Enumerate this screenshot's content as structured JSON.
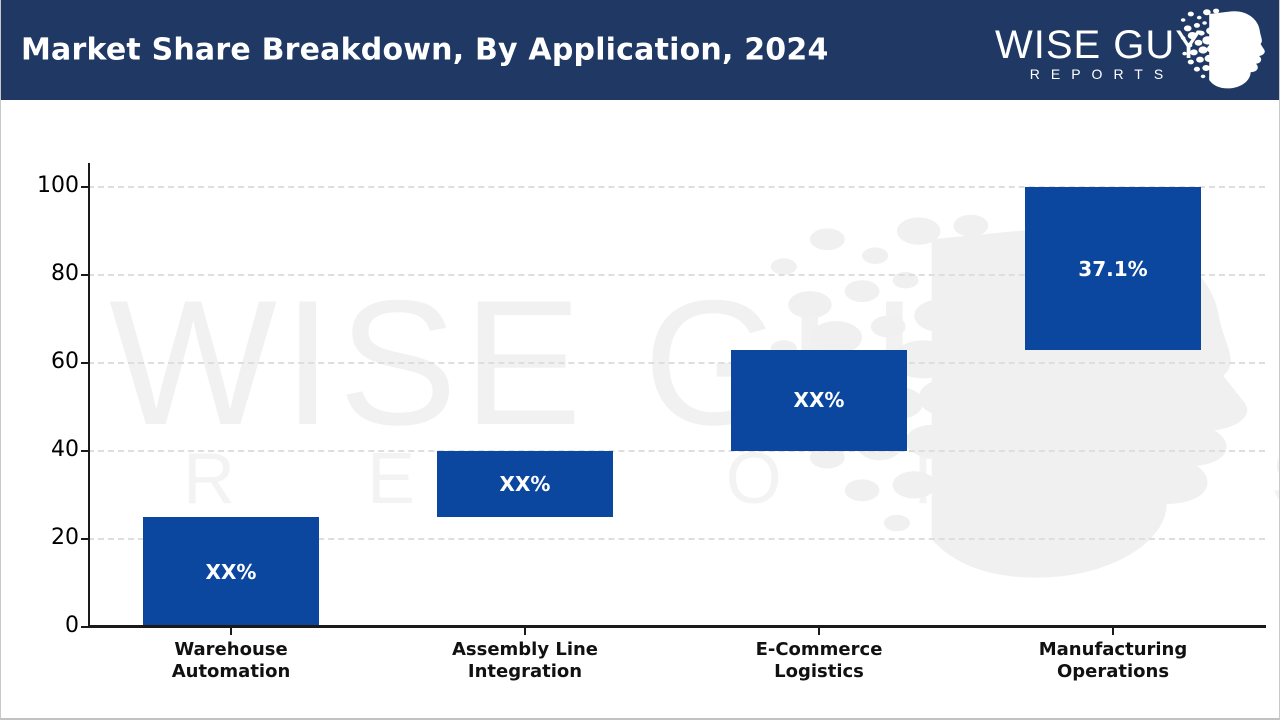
{
  "header": {
    "title": "Market Share Breakdown, By Application, 2024",
    "bg_color": "#1f3864",
    "logo": {
      "line1": "WISE GUY",
      "line2": "REPORTS"
    }
  },
  "watermark": {
    "line1": "WISE GUY",
    "line2": "R E P O R T S"
  },
  "chart_data": {
    "type": "bar",
    "subtype": "waterfall-floating-bars",
    "title": "Market Share Breakdown, By Application, 2024",
    "categories": [
      "Warehouse Automation",
      "Assembly Line Integration",
      "E-Commerce Logistics",
      "Manufacturing Operations"
    ],
    "category_labels": [
      [
        "Warehouse",
        "Automation"
      ],
      [
        "Assembly Line",
        "Integration"
      ],
      [
        "E-Commerce",
        "Logistics"
      ],
      [
        "Manufacturing",
        "Operations"
      ]
    ],
    "segments": [
      {
        "start": 0,
        "end": 25,
        "label": "XX%"
      },
      {
        "start": 25,
        "end": 40,
        "label": "XX%"
      },
      {
        "start": 40,
        "end": 63,
        "label": "XX%"
      },
      {
        "start": 62.9,
        "end": 100,
        "label": "37.1%"
      }
    ],
    "y_ticks": [
      0,
      20,
      40,
      60,
      80,
      100
    ],
    "ylim": [
      0,
      106
    ],
    "xlabel": "",
    "ylabel": "",
    "legend": "none",
    "grid": "horizontal-dashed",
    "bar_color": "#0b479e",
    "bar_label_color": "#ffffff",
    "axis_color": "#1a1a1a",
    "gridline_color": "#dedede"
  }
}
